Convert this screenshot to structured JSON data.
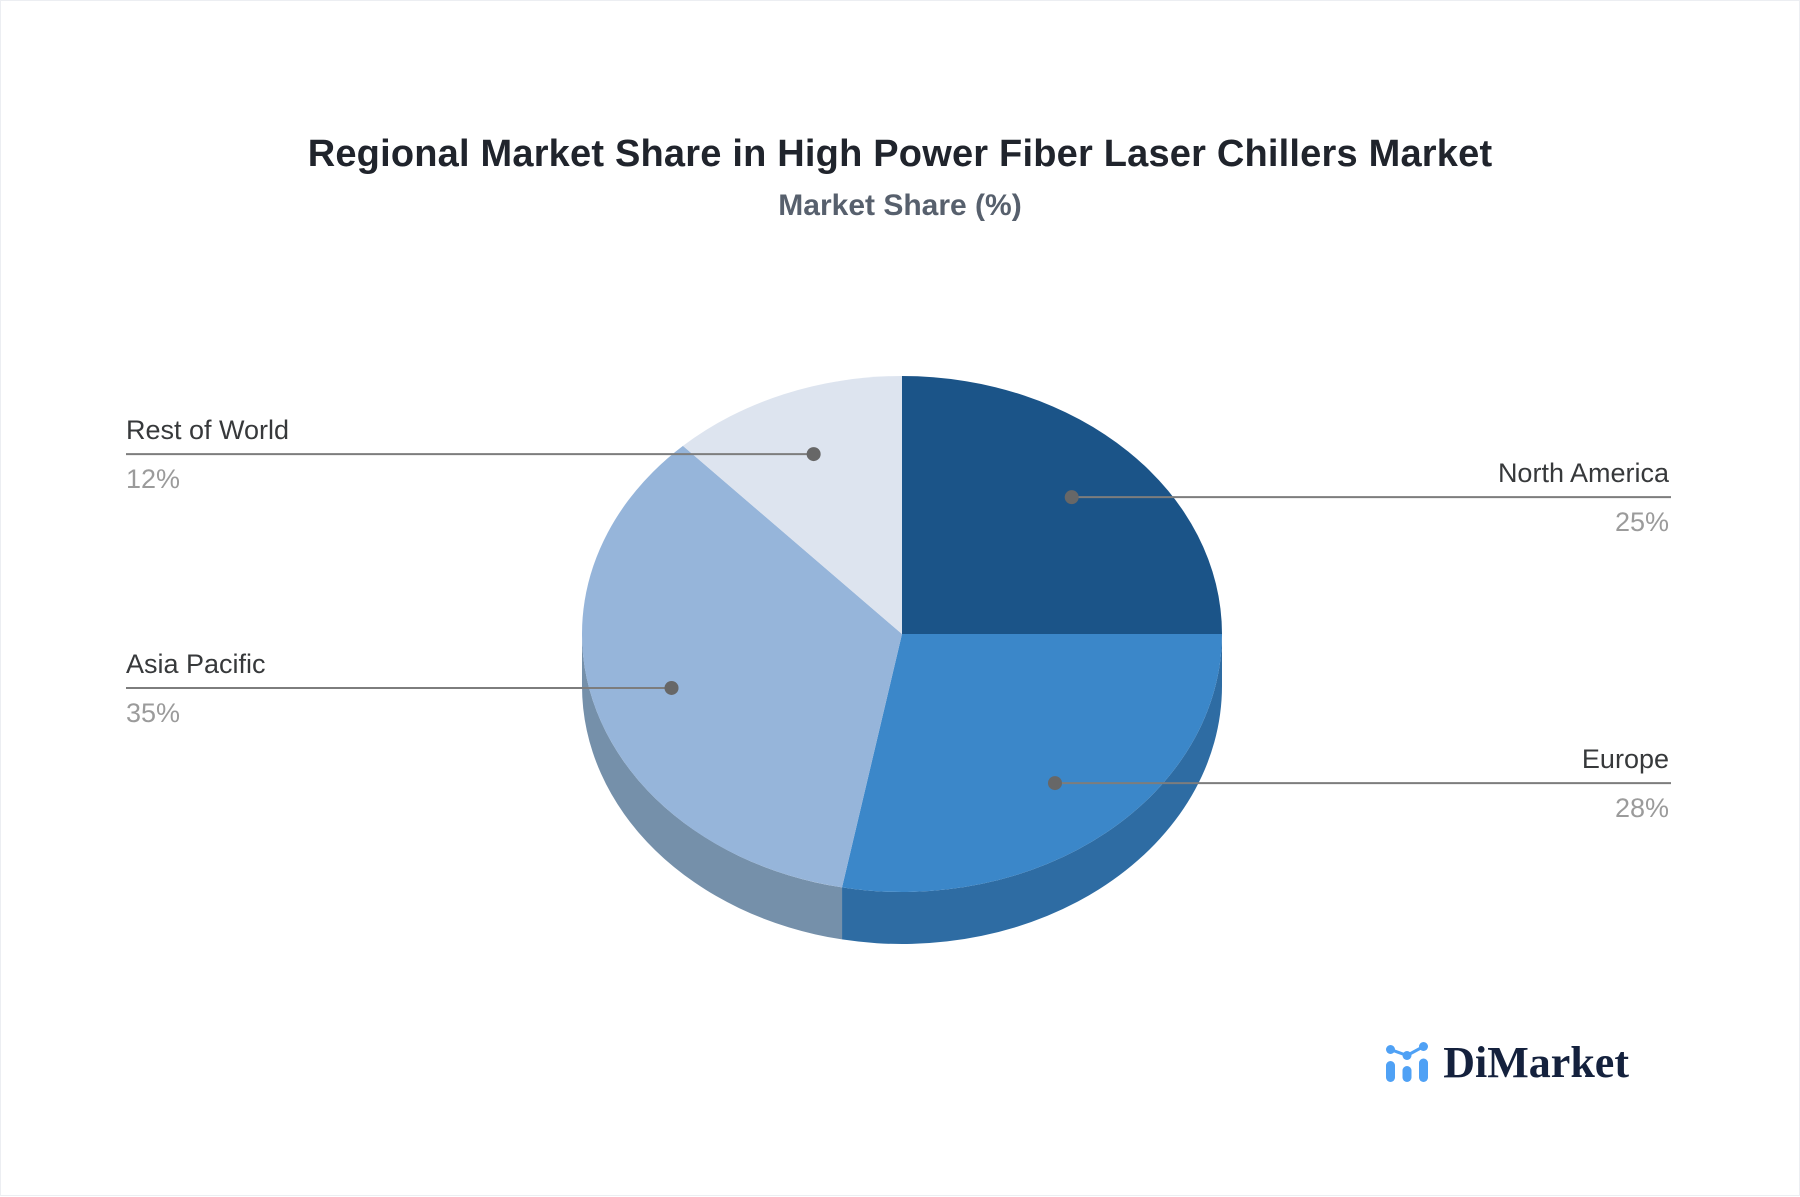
{
  "chart_data": {
    "type": "pie",
    "title": "Regional Market Share in High Power Fiber Laser Chillers Market",
    "subtitle": "Market Share (%)",
    "unit": "%",
    "direction": "clockwise",
    "start_angle_deg": 0,
    "legend": "none",
    "labels_connected_by_leader_lines": true,
    "effect": "3d-depth",
    "slices": [
      {
        "name": "North America",
        "value": 25,
        "value_label": "25%",
        "color": "#1B5488",
        "side_color": "#16456F",
        "label_side": "right"
      },
      {
        "name": "Europe",
        "value": 28,
        "value_label": "28%",
        "color": "#3B87C9",
        "side_color": "#2E6CA3",
        "label_side": "right"
      },
      {
        "name": "Asia Pacific",
        "value": 35,
        "value_label": "35%",
        "color": "#96B5DA",
        "side_color": "#7590AA",
        "label_side": "left"
      },
      {
        "name": "Rest of World",
        "value": 12,
        "value_label": "12%",
        "color": "#DDE4EF",
        "side_color": "#C2CBD9",
        "label_side": "left"
      }
    ],
    "leader_line_color": "#7d7d7d",
    "leader_dot_color": "#676767",
    "label_color": "#37393b",
    "value_color": "#9b9b9b"
  },
  "branding": {
    "logo_text": "DiMarket",
    "logo_icon": "bar-chart-trend-icon",
    "logo_text_color": "#14213D",
    "logo_accent_color": "#4FA1F5"
  }
}
